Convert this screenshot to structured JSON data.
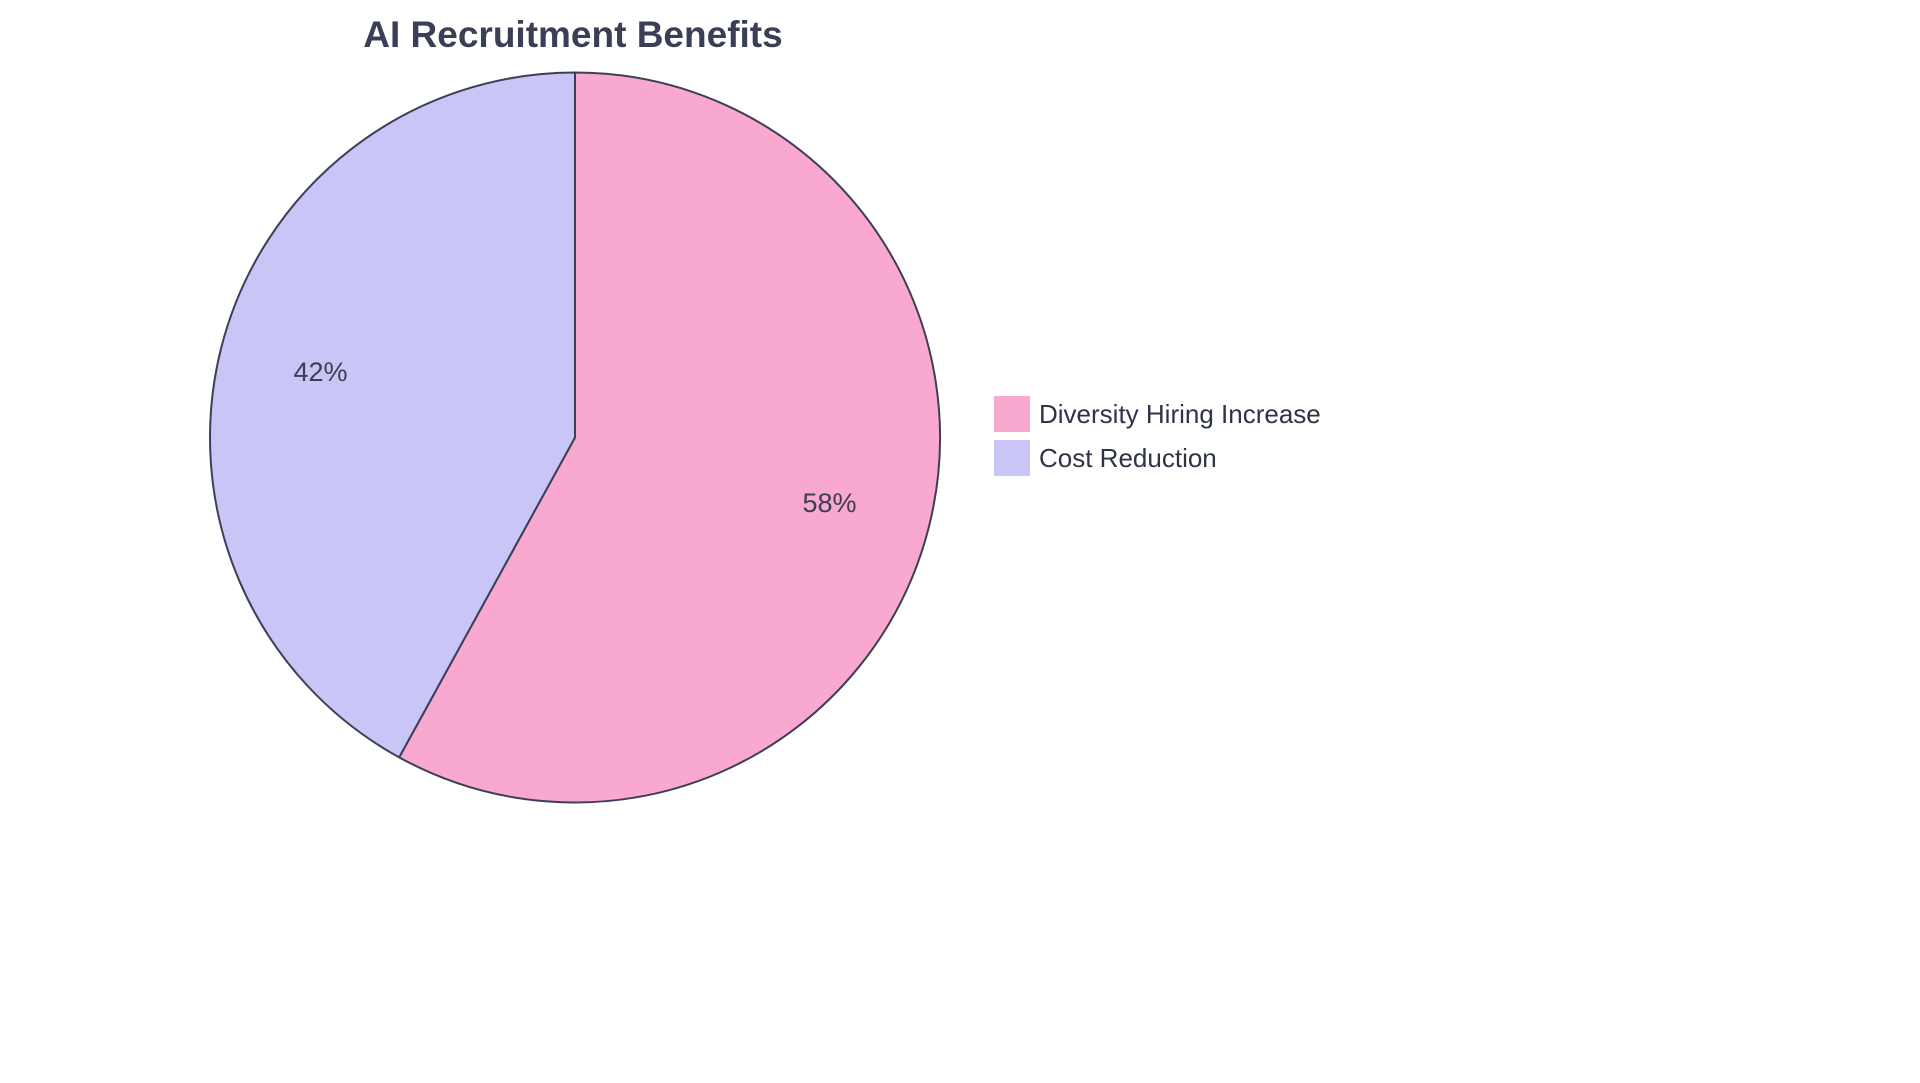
{
  "title": "AI Recruitment Benefits",
  "chart_data": {
    "type": "pie",
    "title": "AI Recruitment Benefits",
    "labels": [
      "Diversity Hiring Increase",
      "Cost Reduction"
    ],
    "values": [
      58,
      42
    ],
    "slice_labels": [
      "58%",
      "42%"
    ],
    "colors": [
      "#F9A8CF",
      "#C9C5F6"
    ],
    "stroke_color": "#3C3F58",
    "text_color": "#3A3F55",
    "start_angle_deg": 0,
    "direction": "clockwise",
    "legend_position": "right"
  },
  "legend": {
    "items": [
      {
        "label": "Diversity Hiring Increase",
        "color": "#F9A8CF"
      },
      {
        "label": "Cost Reduction",
        "color": "#C9C5F6"
      }
    ]
  }
}
